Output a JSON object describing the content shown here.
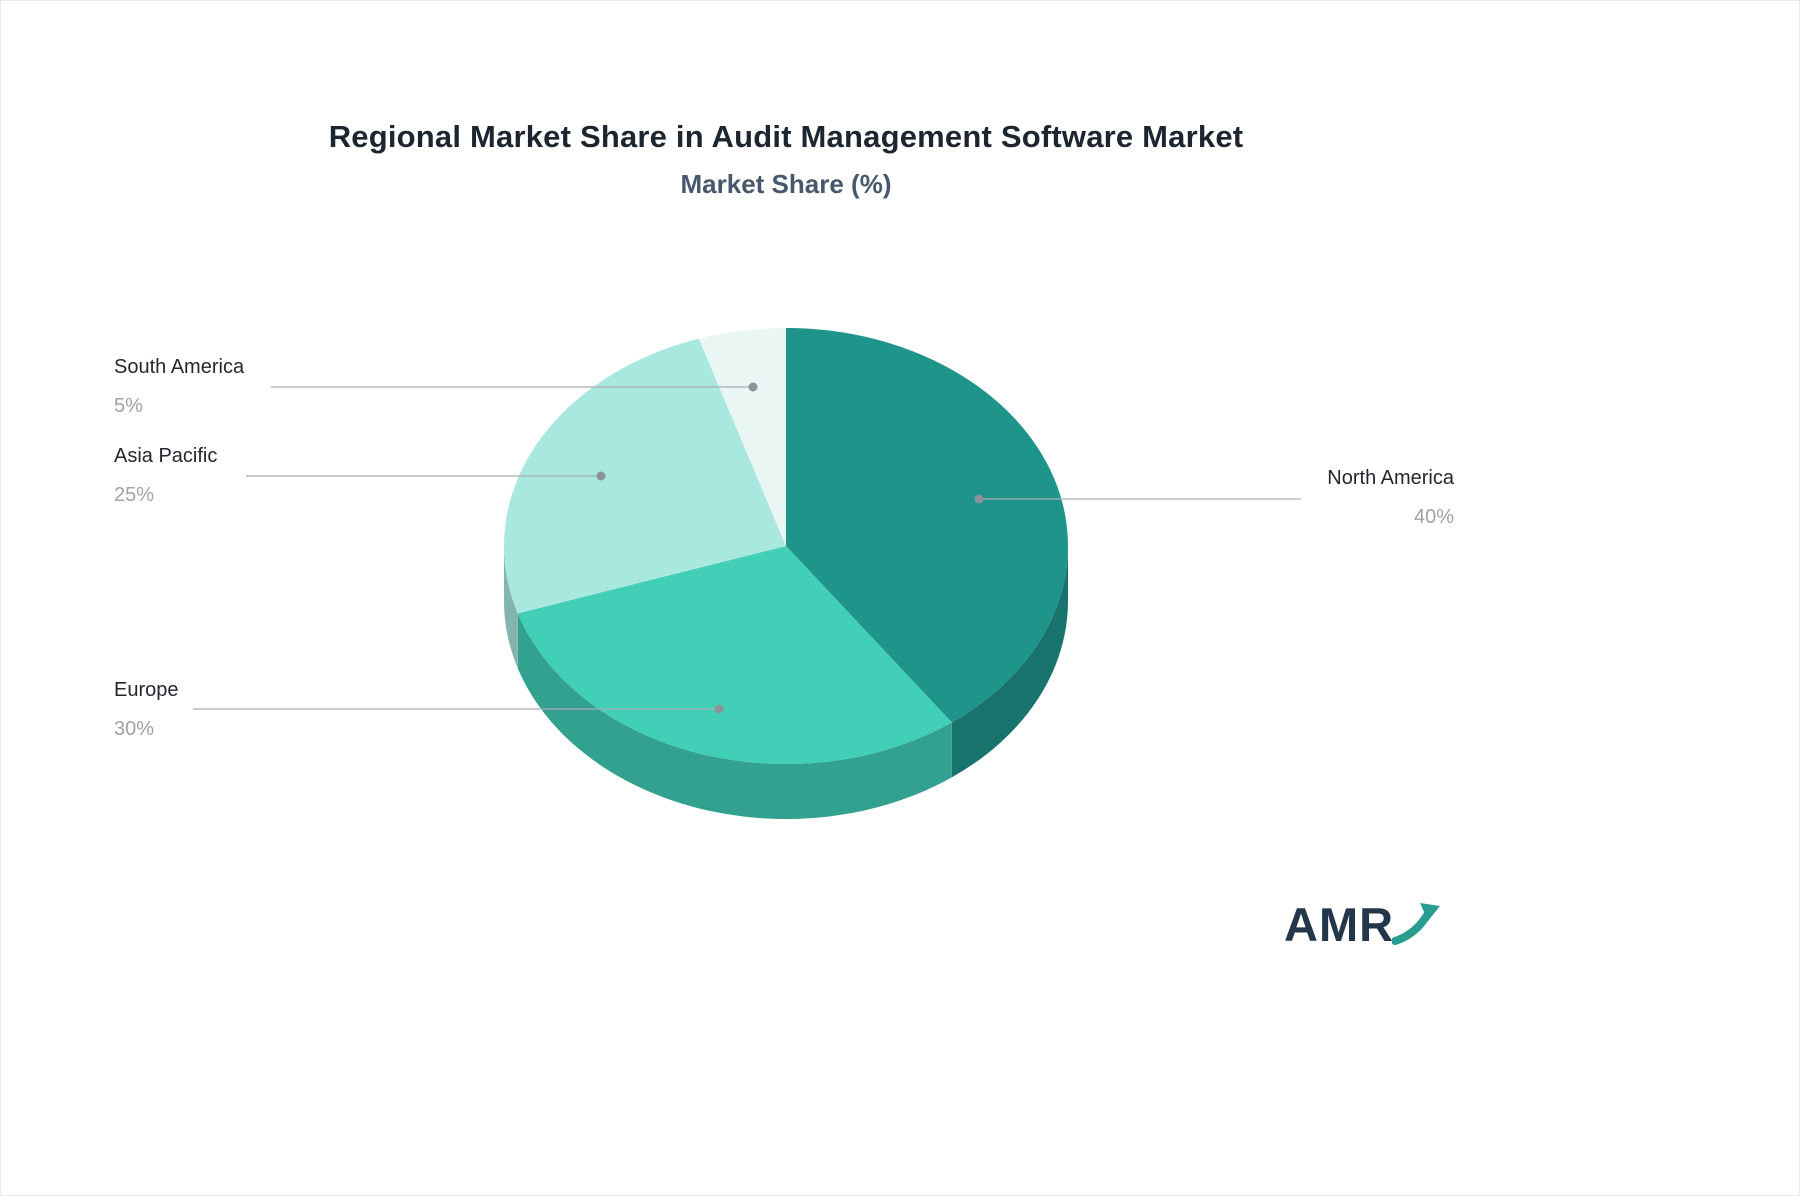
{
  "chart_data": {
    "type": "pie",
    "style": "3d",
    "title": "Regional Market Share in Audit Management Software Market",
    "subtitle": "Market Share (%)",
    "direction": "clockwise",
    "start_angle_deg": 0,
    "legend_position": "callout-labels",
    "slices": [
      {
        "label": "North America",
        "value": 40,
        "value_label": "40%",
        "color": "#1e948a"
      },
      {
        "label": "Europe",
        "value": 30,
        "value_label": "30%",
        "color": "#41cfb8"
      },
      {
        "label": "Asia Pacific",
        "value": 25,
        "value_label": "25%",
        "color": "#a9e8de"
      },
      {
        "label": "South America",
        "value": 5,
        "value_label": "5%",
        "color": "#e9f6f3"
      }
    ],
    "leader_line_color": "#a9adb2",
    "leader_dot_color": "#8b9299"
  },
  "branding": {
    "logo_text": "AMR",
    "logo_color": "#24364a",
    "logo_arrow_color": "#2a9d93"
  }
}
